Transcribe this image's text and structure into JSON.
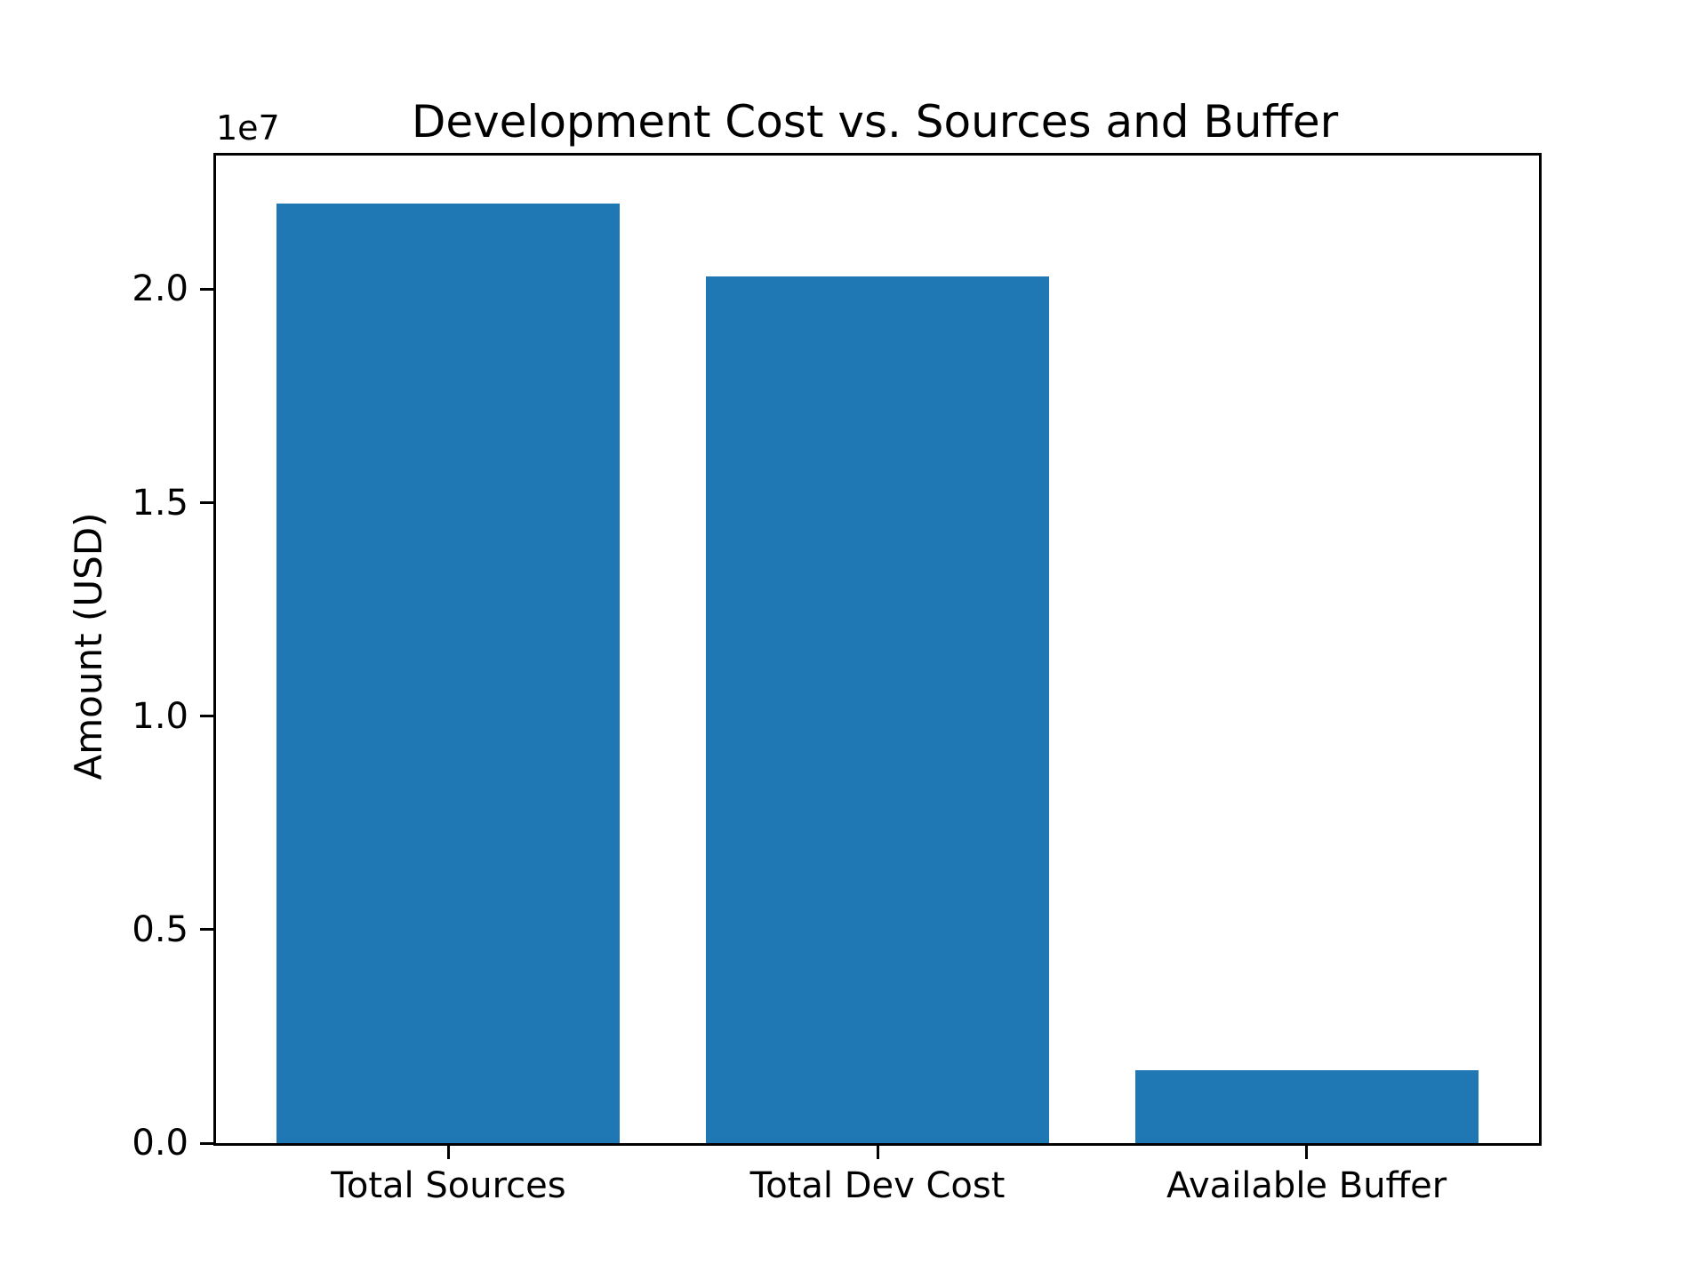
{
  "figure": {
    "background_color": "#ffffff",
    "text_color": "#000000",
    "axis_color": "#000000"
  },
  "chart_data": {
    "type": "bar",
    "title": "Development Cost vs. Sources and Buffer",
    "xlabel": "",
    "ylabel": "Amount (USD)",
    "categories": [
      "Total Sources",
      "Total Dev Cost",
      "Available Buffer"
    ],
    "values": [
      22000000,
      20300000,
      1700000
    ],
    "bar_color": "#1f77b4",
    "bar_width_fraction": 0.8,
    "xlim": [
      -0.5417,
      2.5417
    ],
    "ylim": [
      0,
      23130000
    ],
    "yticks": [
      0,
      5000000,
      10000000,
      15000000,
      20000000
    ],
    "ytick_labels": [
      "0.0",
      "0.5",
      "1.0",
      "1.5",
      "2.0"
    ],
    "offset_text": "1e7",
    "grid": false,
    "legend": "none"
  }
}
